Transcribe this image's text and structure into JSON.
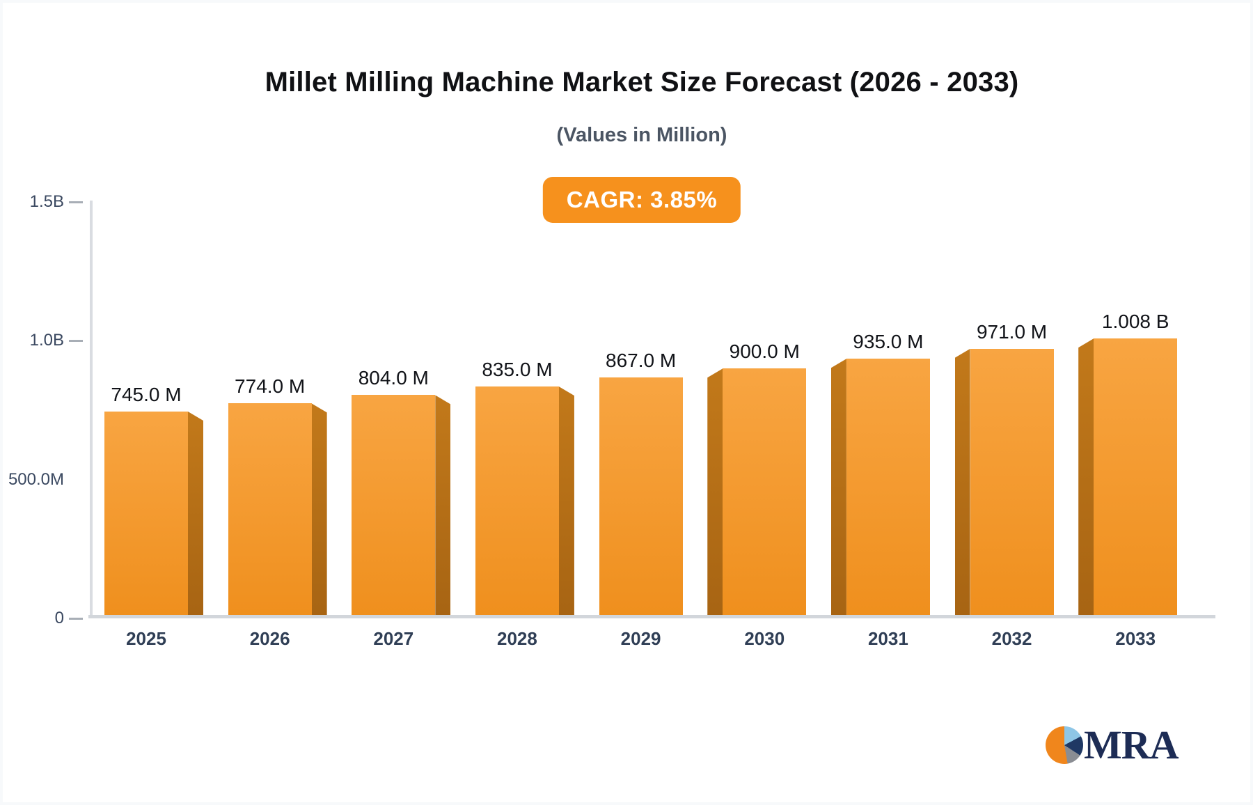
{
  "header": {
    "title": "Millet Milling Machine Market Size Forecast (2026 - 2033)",
    "subtitle": "(Values in Million)",
    "badge": "CAGR: 3.85%",
    "badge_bg": "#f6911d",
    "badge_text_color": "#ffffff"
  },
  "chart_data": {
    "type": "bar",
    "title": "Millet Milling Machine Market Size Forecast (2026 - 2033)",
    "subtitle": "(Values in Million)",
    "annotation": "CAGR: 3.85%",
    "categories": [
      "2025",
      "2026",
      "2027",
      "2028",
      "2029",
      "2030",
      "2031",
      "2032",
      "2033"
    ],
    "values_millions": [
      745,
      774,
      804,
      835,
      867,
      900,
      935,
      971,
      1008
    ],
    "bar_value_labels": [
      "745.0 M",
      "774.0 M",
      "804.0 M",
      "835.0 M",
      "867.0 M",
      "900.0 M",
      "935.0 M",
      "971.0 M",
      "1.008 B"
    ],
    "ylim": [
      0,
      1500
    ],
    "y_ticks": [
      {
        "label": "1.5B",
        "value": 1500,
        "dash": true
      },
      {
        "label": "1.0B",
        "value": 1000,
        "dash": true
      },
      {
        "label": "500.0M",
        "value": 500,
        "dash": false
      },
      {
        "label": "0",
        "value": 0,
        "dash": true
      }
    ],
    "grid": false,
    "legend": false,
    "colors": {
      "bar_front_top": "#f8a542",
      "bar_front_bottom": "#ef8f1d",
      "bar_side_top": "#c2791a",
      "bar_side_bottom": "#a76413",
      "axis": "#d9dce1",
      "baseline": "#d2d6db",
      "tick_dash": "#a8aeb6",
      "value_label": "#111318",
      "category_label": "#2f3e55",
      "y_label": "#3a4860"
    }
  },
  "logo": {
    "text": "MRA",
    "text_color": "#1d2c55",
    "pie_colors": {
      "orange": "#f0861c",
      "light_blue": "#8ec6e6",
      "navy": "#1f3864",
      "gray": "#8a8d93"
    }
  }
}
